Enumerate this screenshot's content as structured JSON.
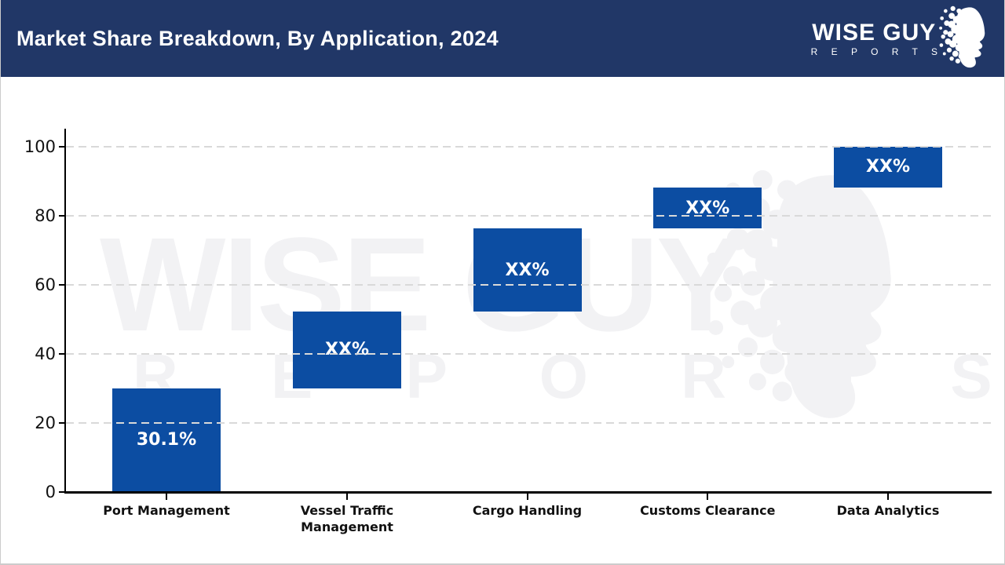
{
  "header": {
    "title": "Market Share Breakdown, By Application, 2024",
    "logo": {
      "line1": "WISE GUY",
      "line2": "R E P O R T S"
    }
  },
  "watermark": {
    "line1": "WISE GUY",
    "line2": "R E P O R T S"
  },
  "colors": {
    "header_bg": "#213767",
    "bar": "#0C4DA2",
    "bar_label": "#FFFFFF",
    "grid": "#D9D9D9",
    "axis": "#000000",
    "watermark": "#F2F2F4",
    "border": "#CCCCCC"
  },
  "chart_data": {
    "type": "bar",
    "subtype": "waterfall",
    "title": "Market Share Breakdown, By Application, 2024",
    "xlabel": "",
    "ylabel": "",
    "ylim": [
      0,
      100
    ],
    "y_ticks": [
      0,
      20,
      40,
      60,
      80,
      100
    ],
    "grid": "horizontal-dashed",
    "legend": "none",
    "categories": [
      "Port Management",
      "Vessel Traffic Management",
      "Cargo Handling",
      "Customs Clearance",
      "Data Analytics"
    ],
    "segments": [
      {
        "category": "Port Management",
        "start": 0,
        "end": 30.1,
        "label": "30.1%"
      },
      {
        "category": "Vessel Traffic Management",
        "start": 30.1,
        "end": 52.2,
        "label": "XX%"
      },
      {
        "category": "Cargo Handling",
        "start": 52.2,
        "end": 76.3,
        "label": "XX%"
      },
      {
        "category": "Customs Clearance",
        "start": 76.3,
        "end": 88.2,
        "label": "XX%"
      },
      {
        "category": "Data Analytics",
        "start": 88.2,
        "end": 100,
        "label": "XX%"
      }
    ]
  }
}
